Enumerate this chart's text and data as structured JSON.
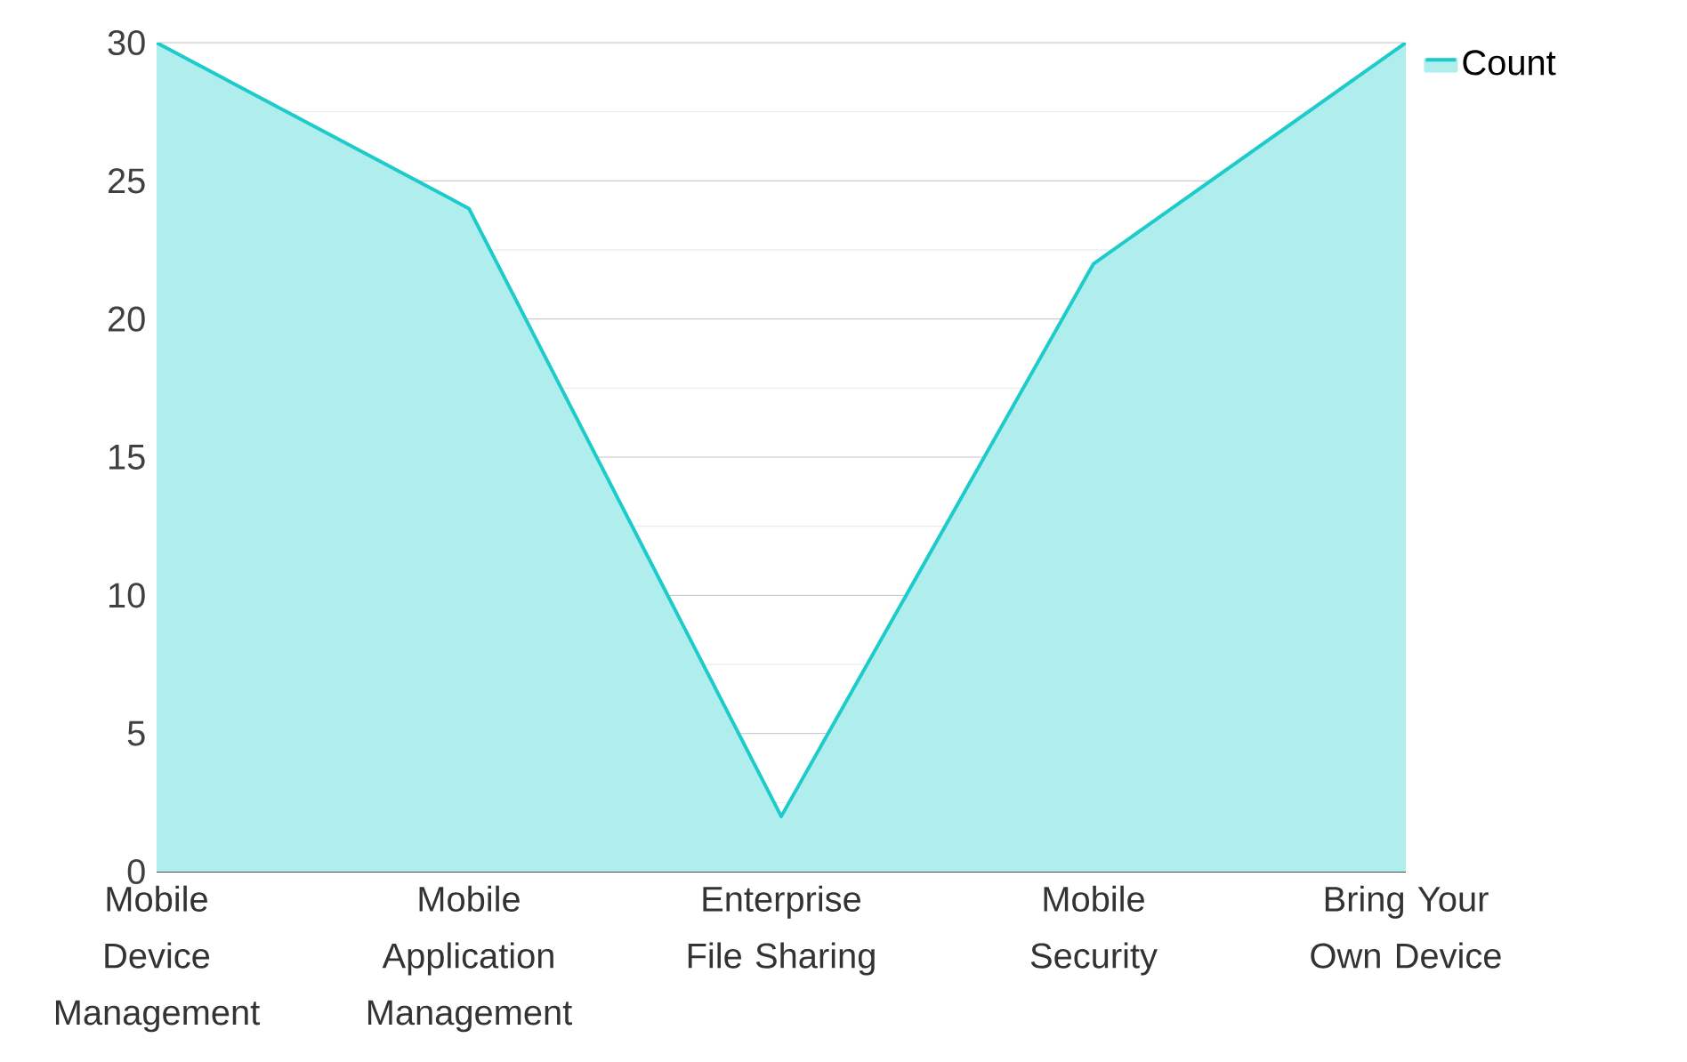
{
  "chart_data": {
    "type": "area",
    "categories": [
      "Mobile Device Management",
      "Mobile Application Management",
      "Enterprise File Sharing",
      "Mobile Security",
      "Bring Your Own Device"
    ],
    "series": [
      {
        "name": "Count",
        "color": "#1ecbcb",
        "values": [
          30,
          24,
          2,
          22,
          30
        ]
      }
    ],
    "ylim": [
      0,
      30
    ],
    "yticks": [
      0,
      {
        "value": 2.5,
        "label": null
      },
      5,
      {
        "value": 7.5,
        "label": null
      },
      10,
      {
        "value": 12.5,
        "label": null
      },
      15,
      {
        "value": 17.5,
        "label": null
      },
      20,
      {
        "value": 22.5,
        "label": null
      },
      25,
      {
        "value": 27.5,
        "label": null
      },
      30
    ],
    "grid": "y",
    "legend": "top right"
  }
}
